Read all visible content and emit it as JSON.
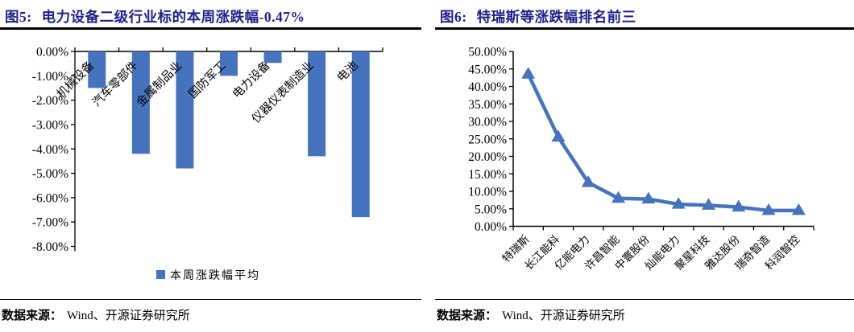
{
  "colors": {
    "accent_blue": "#4573BE",
    "title_navy": "#1E1E8F",
    "axis_black": "#000000"
  },
  "panels": [
    {
      "title": {
        "label": "图5:",
        "text": "电力设备二级行业标的本周涨跌幅-0.47%"
      },
      "source": {
        "label": "数据来源：",
        "text": "Wind、开源证券研究所"
      }
    },
    {
      "title": {
        "label": "图6:",
        "text": "特瑞斯等涨跌幅排名前三"
      },
      "source": {
        "label": "数据来源：",
        "text": "Wind、开源证券研究所"
      }
    }
  ],
  "chart_data": [
    {
      "type": "bar",
      "title": "电力设备二级行业标的本周涨跌幅-0.47%",
      "categories": [
        "机械设备",
        "汽车零部件",
        "金属制品业",
        "国防军工",
        "电力设备",
        "仪器仪表制造业",
        "电池"
      ],
      "values": [
        -1.5,
        -4.2,
        -4.8,
        -1.0,
        -0.47,
        -4.3,
        -6.8
      ],
      "legend": [
        "本周涨跌幅平均"
      ],
      "legend_position": "bottom",
      "xlabel": "",
      "ylabel": "",
      "ylim": [
        -8,
        0
      ],
      "ytick_step": 1,
      "tick_format": "percent2",
      "grid": false,
      "bar_color": "#4573BE"
    },
    {
      "type": "line",
      "title": "特瑞斯等涨跌幅排名前三",
      "categories": [
        "特瑞斯",
        "长江能科",
        "亿能电力",
        "许昌智能",
        "中寰股份",
        "灿能电力",
        "聚星科技",
        "雅达股份",
        "瑞奇智造",
        "科润智控"
      ],
      "values": [
        43.5,
        25.5,
        12.5,
        8.0,
        7.8,
        6.3,
        6.0,
        5.5,
        4.5,
        4.5
      ],
      "legend": [],
      "marker": "triangle",
      "xlabel": "",
      "ylabel": "",
      "ylim": [
        0,
        50
      ],
      "ytick_step": 5,
      "tick_format": "percent2",
      "grid": false,
      "line_color": "#4573BE"
    }
  ]
}
